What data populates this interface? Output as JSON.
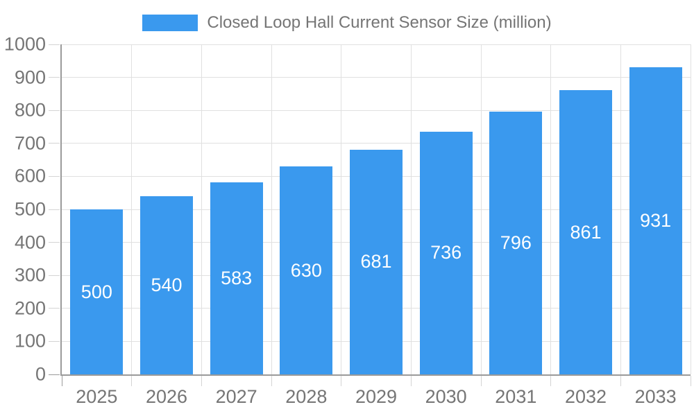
{
  "chart_data": {
    "type": "bar",
    "title": "Closed Loop Hall Current Sensor Size (million)",
    "categories": [
      "2025",
      "2026",
      "2027",
      "2028",
      "2029",
      "2030",
      "2031",
      "2032",
      "2033"
    ],
    "series": [
      {
        "name": "Closed Loop Hall Current Sensor Size (million)",
        "values": [
          500,
          540,
          583,
          630,
          681,
          736,
          796,
          861,
          931
        ]
      }
    ],
    "xlabel": "",
    "ylabel": "",
    "ylim": [
      0,
      1000
    ],
    "ytick_step": 100,
    "y_tick_labels": [
      "0",
      "100",
      "200",
      "300",
      "400",
      "500",
      "600",
      "700",
      "800",
      "900",
      "1000"
    ],
    "grid": true,
    "legend_position": "top-center",
    "value_label_position": "inside-center",
    "colors": {
      "bar": "#3A99EE",
      "bar_value_label": "#ffffff",
      "axis_line": "#9a9a9a",
      "grid_line": "#e0e0e0",
      "tick_mark": "#d4d4d4",
      "text": "#757575",
      "background": "#ffffff"
    }
  }
}
